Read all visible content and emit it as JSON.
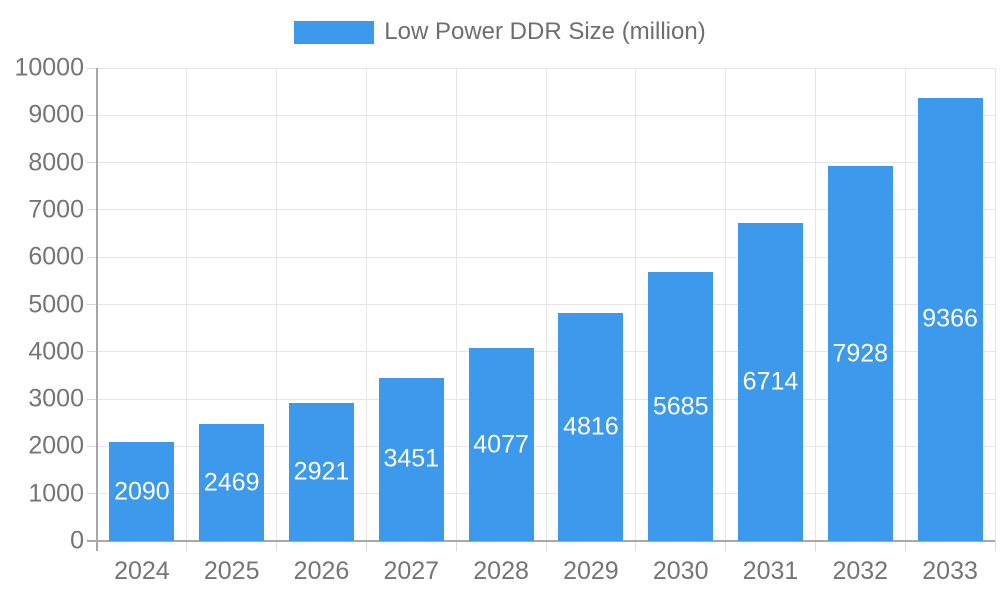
{
  "page": {
    "background": "#ffffff"
  },
  "legend": {
    "label": "Low Power DDR Size (million)",
    "position": "top-center"
  },
  "colors": {
    "bar_fill": "#3C99EC",
    "bar_label_text": "#ffffff",
    "grid_line": "#E6E6E6",
    "axis_line": "#A8A8A8",
    "tick_mark": "#D9D9D9",
    "tick_label_text": "#757575",
    "legend_text": "#6E6E6E"
  },
  "chart_data": {
    "type": "bar",
    "title": "Low Power DDR Size (million)",
    "categories": [
      "2024",
      "2025",
      "2026",
      "2027",
      "2028",
      "2029",
      "2030",
      "2031",
      "2032",
      "2033"
    ],
    "series": [
      {
        "name": "Low Power DDR Size (million)",
        "values": [
          2090,
          2469,
          2921,
          3451,
          4077,
          4816,
          5685,
          6714,
          7928,
          9366
        ]
      }
    ],
    "xlabel": "",
    "ylabel": "",
    "ylim": [
      0,
      10000
    ],
    "ytick_step": 1000,
    "yticks": [
      0,
      1000,
      2000,
      3000,
      4000,
      5000,
      6000,
      7000,
      8000,
      9000,
      10000
    ],
    "grid": true,
    "legend_position": "top",
    "value_labels": "inside-center-white"
  }
}
